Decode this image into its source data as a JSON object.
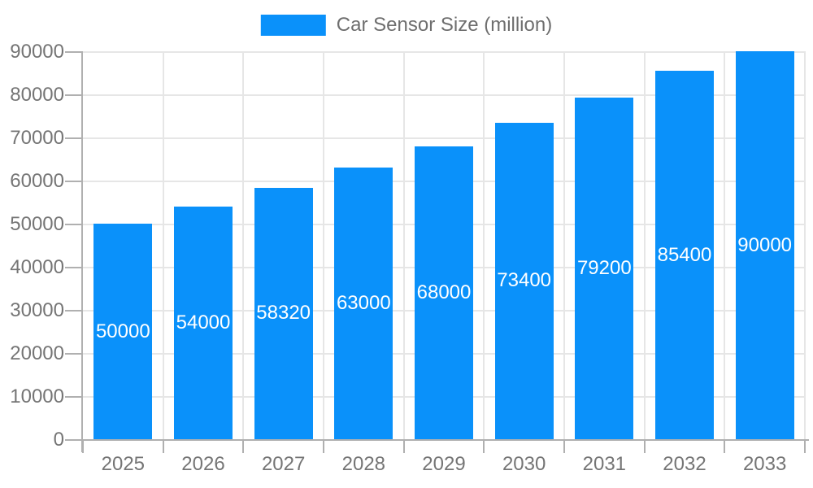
{
  "legend": {
    "label": "Car Sensor Size (million)"
  },
  "chart_data": {
    "type": "bar",
    "title": "",
    "xlabel": "",
    "ylabel": "",
    "categories": [
      "2025",
      "2026",
      "2027",
      "2028",
      "2029",
      "2030",
      "2031",
      "2032",
      "2033"
    ],
    "series": [
      {
        "name": "Car Sensor Size (million)",
        "values": [
          50000,
          54000,
          58320,
          63000,
          68000,
          73400,
          79200,
          85400,
          90000
        ]
      }
    ],
    "ylim": [
      0,
      90000
    ],
    "ytick_step": 10000,
    "ytick_labels": [
      "0",
      "10000",
      "20000",
      "30000",
      "40000",
      "50000",
      "60000",
      "70000",
      "80000",
      "90000"
    ],
    "value_labels_position": "inside-center",
    "grid": true,
    "legend_position": "top-center"
  },
  "colors": {
    "bar_fill": "#0a91fa",
    "value_label_text": "#ffffff",
    "axis_line": "#b0b0b0",
    "gridline": "#e6e6e6",
    "tick_label_text": "#757575",
    "legend_text": "#6e6e6e",
    "background": "#ffffff"
  }
}
